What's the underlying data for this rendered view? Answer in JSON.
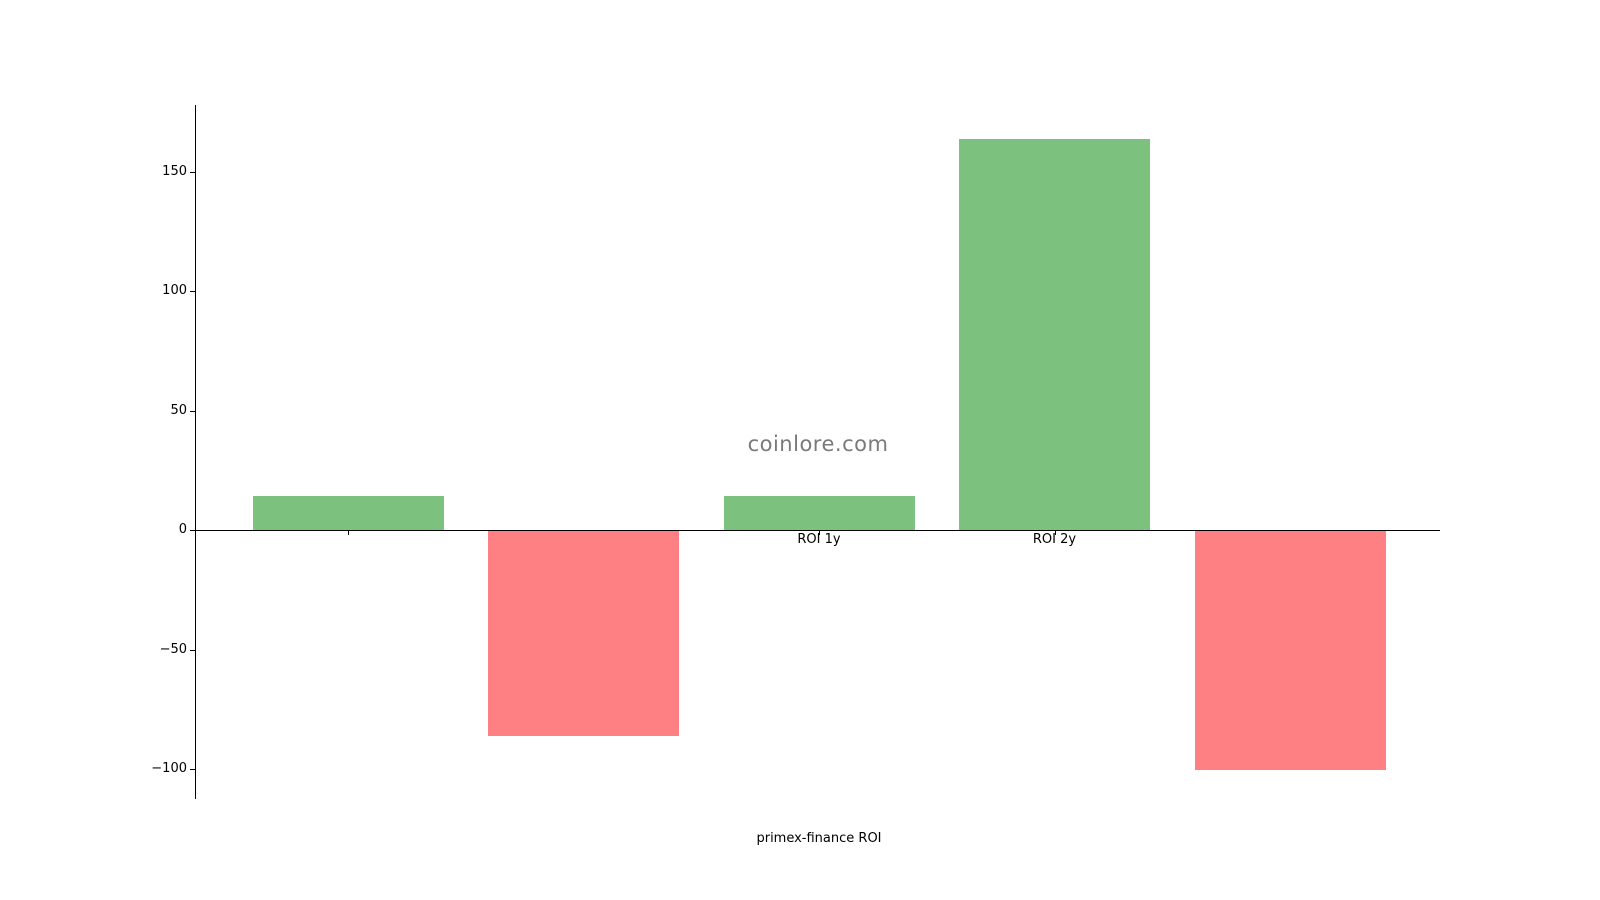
{
  "page": {
    "background": "#ffffff"
  },
  "chart_data": {
    "type": "bar",
    "categories": [
      "",
      "",
      "ROI 1y",
      "ROI 2y",
      ""
    ],
    "values": [
      14.1,
      -85.8,
      14.1,
      163.8,
      -100
    ],
    "title": "",
    "xlabel": "primex-finance ROI",
    "ylabel": "",
    "yticks": [
      {
        "value": 150,
        "label": "150"
      },
      {
        "value": 100,
        "label": "100"
      },
      {
        "value": 50,
        "label": "50"
      },
      {
        "value": 0,
        "label": "0"
      },
      {
        "value": -50,
        "label": "−50"
      },
      {
        "value": -100,
        "label": "−100"
      }
    ],
    "ylim": [
      -113,
      178
    ],
    "grid": false,
    "legend": null,
    "positive_color": "#7dc17f",
    "negative_color": "#ff8082",
    "axis_color": "#000000",
    "text_color": "#000000",
    "watermark": {
      "text": "coinlore.com",
      "color": "#7a7a7a"
    }
  }
}
